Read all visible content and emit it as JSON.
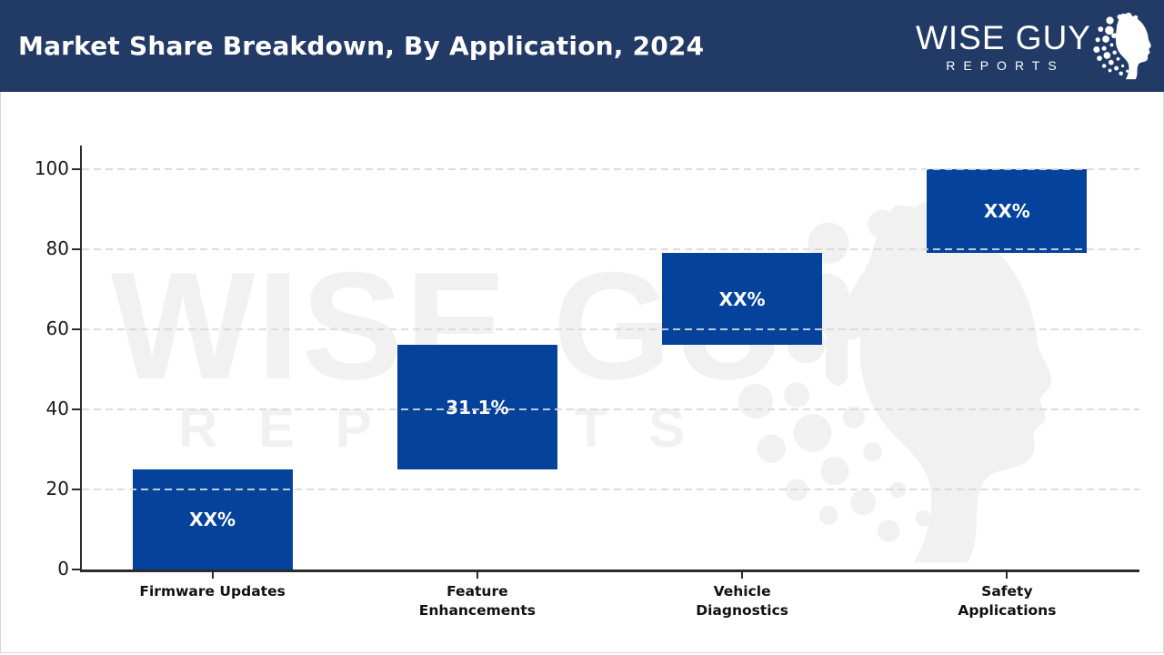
{
  "header": {
    "title": "Market Share Breakdown, By Application, 2024",
    "brand": {
      "line1": "WISE GUY",
      "line2": "REPORTS"
    }
  },
  "watermark": {
    "line1": "WISE GUY",
    "line2": "R E P O R T S"
  },
  "colors": {
    "header_bg": "#213a66",
    "bar": "#05429b",
    "grid": "#d9d9d9",
    "axis": "#2b2b2b",
    "text": "#111111",
    "on_bar_label": "#ffffff",
    "watermark": "#f1f1f1"
  },
  "chart_data": {
    "type": "bar",
    "variant": "waterfall",
    "title": "Market Share Breakdown, By Application, 2024",
    "categories": [
      "Firmware Updates",
      "Feature Enhancements",
      "Vehicle Diagnostics",
      "Safety Applications"
    ],
    "category_label_lines": [
      [
        "Firmware Updates"
      ],
      [
        "Feature",
        "Enhancements"
      ],
      [
        "Vehicle",
        "Diagnostics"
      ],
      [
        "Safety",
        "Applications"
      ]
    ],
    "segments": [
      {
        "category": "Firmware Updates",
        "start": 0,
        "end": 25,
        "height": 25,
        "label": "XX%"
      },
      {
        "category": "Feature Enhancements",
        "start": 25,
        "end": 56.1,
        "height": 31.1,
        "label": "31.1%"
      },
      {
        "category": "Vehicle Diagnostics",
        "start": 56.1,
        "end": 79.1,
        "height": 23,
        "label": "XX%"
      },
      {
        "category": "Safety Applications",
        "start": 79.1,
        "end": 100,
        "height": 20.9,
        "label": "XX%"
      }
    ],
    "y_ticks": [
      0,
      20,
      40,
      60,
      80,
      100
    ],
    "ylim": [
      0,
      105
    ],
    "xlabel": "",
    "ylabel": "",
    "grid": "dashed-horizontal",
    "legend": "none"
  }
}
